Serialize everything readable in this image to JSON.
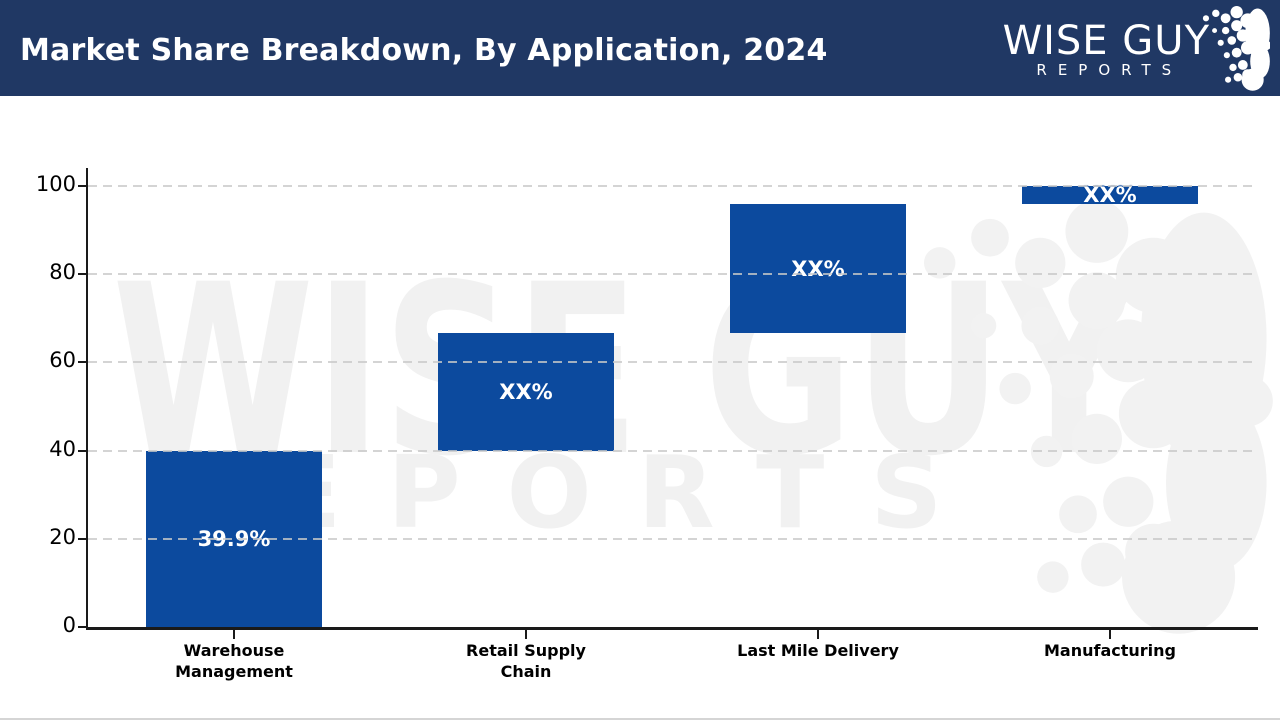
{
  "header": {
    "title": "Market Share Breakdown, By Application, 2024",
    "bg_color": "#203864",
    "logo": {
      "line1": "WISE GUY",
      "line2": "REPORTS"
    }
  },
  "watermark": {
    "line1": "WISE GUY",
    "line2": "REPORTS"
  },
  "chart_data": {
    "type": "bar",
    "subtype": "floating-stacked-breakdown",
    "title": "Market Share Breakdown, By Application, 2024",
    "categories": [
      "Warehouse\nManagement",
      "Retail Supply\nChain",
      "Last Mile Delivery",
      "Manufacturing"
    ],
    "segments": [
      {
        "category": "Warehouse Management",
        "label": "39.9%",
        "start": 0,
        "end": 39.9
      },
      {
        "category": "Retail Supply Chain",
        "label": "XX%",
        "start": 39.9,
        "end": 66.6
      },
      {
        "category": "Last Mile Delivery",
        "label": "XX%",
        "start": 66.6,
        "end": 95.9
      },
      {
        "category": "Manufacturing",
        "label": "XX%",
        "start": 95.9,
        "end": 100
      }
    ],
    "yticks": [
      0,
      20,
      40,
      60,
      80,
      100
    ],
    "ylim": [
      0,
      104
    ],
    "xlabel": "",
    "ylabel": "",
    "grid": "dashed-horizontal",
    "legend": "none",
    "bar_color": "#0c4a9e",
    "grid_color": "#d9d9d9",
    "axis_color": "#1a1a1a"
  }
}
